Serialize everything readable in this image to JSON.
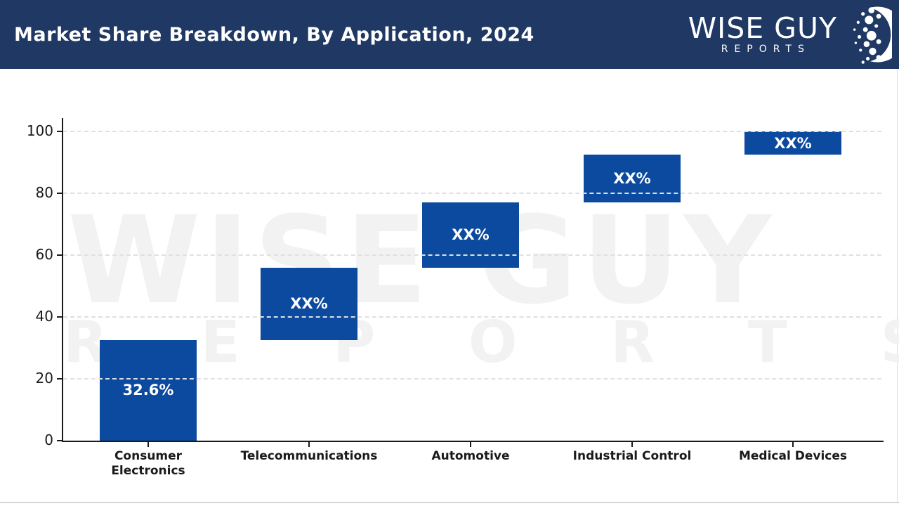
{
  "header": {
    "title": "Market Share Breakdown, By Application, 2024",
    "bg_color": "#1f3864",
    "logo": {
      "line1": "WISE GUY",
      "line2": "REPORTS"
    }
  },
  "watermark": {
    "line1": "WISE GUY",
    "line2": "R E P O R T S"
  },
  "chart_data": {
    "type": "bar",
    "subtype": "floating-waterfall",
    "title": "Market Share Breakdown, By Application, 2024",
    "xlabel": "",
    "ylabel": "",
    "ylim": [
      0,
      100
    ],
    "yticks": [
      0,
      20,
      40,
      60,
      80,
      100
    ],
    "grid": "horizontal-dashed",
    "legend": "none",
    "bar_color": "#0b4a9e",
    "value_label_color": "#ffffff",
    "categories": [
      "Consumer Electronics",
      "Telecommunications",
      "Automotive",
      "Industrial Control",
      "Medical Devices"
    ],
    "category_label_lines": [
      [
        "Consumer",
        "Electronics"
      ],
      [
        "Telecommunications"
      ],
      [
        "Automotive"
      ],
      [
        "Industrial Control"
      ],
      [
        "Medical Devices"
      ]
    ],
    "segments": [
      {
        "category": "Consumer Electronics",
        "start": 0,
        "end": 32.6,
        "label": "32.6%"
      },
      {
        "category": "Telecommunications",
        "start": 32.6,
        "end": 56,
        "label": "XX%"
      },
      {
        "category": "Automotive",
        "start": 56,
        "end": 77,
        "label": "XX%"
      },
      {
        "category": "Industrial Control",
        "start": 77,
        "end": 92.5,
        "label": "XX%"
      },
      {
        "category": "Medical Devices",
        "start": 92.5,
        "end": 100,
        "label": "XX%"
      }
    ]
  }
}
